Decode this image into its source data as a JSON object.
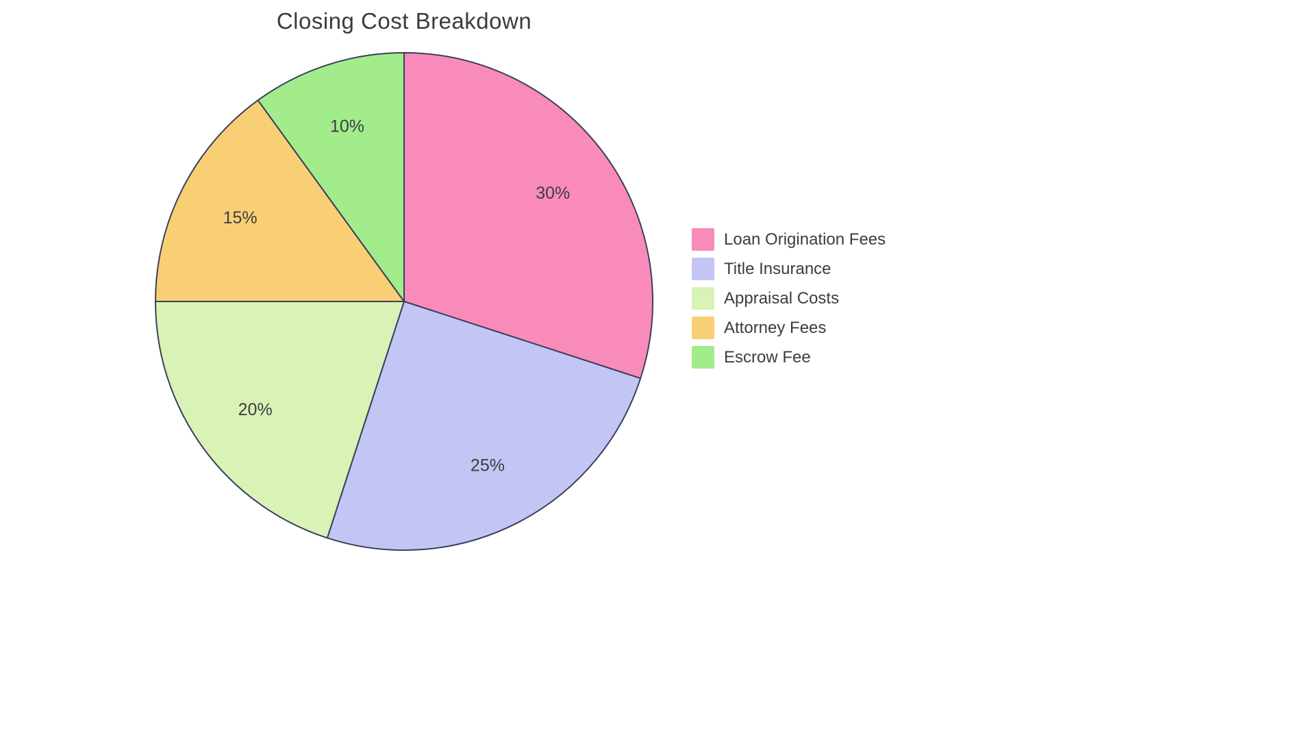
{
  "chart_data": {
    "type": "pie",
    "title": "Closing Cost Breakdown",
    "labels": [
      "Loan Origination Fees",
      "Title Insurance",
      "Appraisal Costs",
      "Attorney Fees",
      "Escrow Fee"
    ],
    "values": [
      30,
      25,
      20,
      15,
      10
    ],
    "slice_labels": [
      "30%",
      "25%",
      "20%",
      "15%",
      "10%"
    ],
    "colors": [
      "#F98BBB",
      "#C3C6F4",
      "#D9F2B6",
      "#F9CF76",
      "#A2EC8C"
    ],
    "stroke_color": "#3A3F5A",
    "slice_label_color": "#3D3D3D",
    "legend_position": "right",
    "start_angle_deg": 0,
    "direction": "clockwise"
  }
}
